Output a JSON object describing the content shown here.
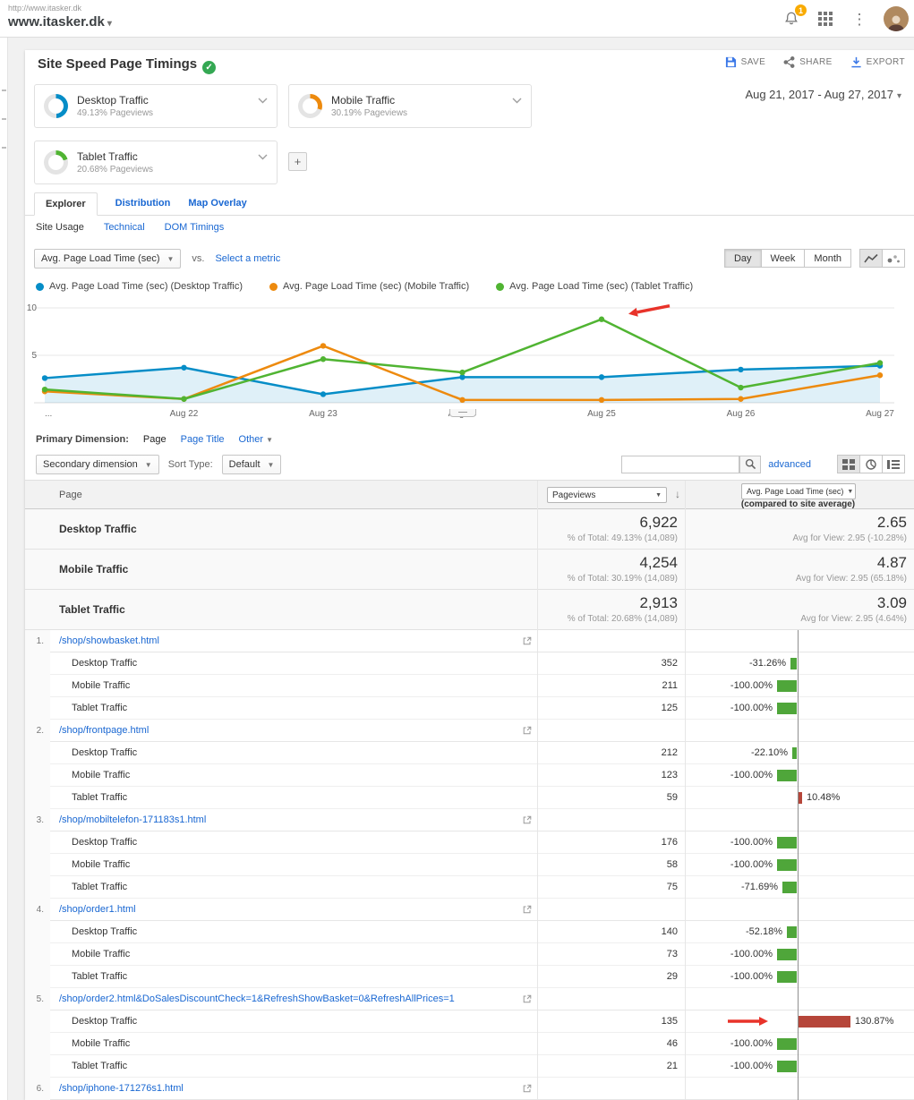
{
  "topbar": {
    "url": "http://www.itasker.dk",
    "account": "www.itasker.dk",
    "notification_count": "1"
  },
  "header": {
    "title": "Site Speed Page Timings",
    "save": "SAVE",
    "share": "SHARE",
    "export": "EXPORT",
    "date_range": "Aug 21, 2017 - Aug 27, 2017"
  },
  "add_segment_label": "+",
  "segments": [
    {
      "name": "Desktop Traffic",
      "subtitle": "49.13% Pageviews",
      "pct": 49.13,
      "color": "#058dc7"
    },
    {
      "name": "Mobile Traffic",
      "subtitle": "30.19% Pageviews",
      "pct": 30.19,
      "color": "#ed8a0e"
    },
    {
      "name": "Tablet Traffic",
      "subtitle": "20.68% Pageviews",
      "pct": 20.68,
      "color": "#50b432"
    }
  ],
  "tabs": {
    "main": [
      "Explorer",
      "Distribution",
      "Map Overlay"
    ],
    "sub": [
      "Site Usage",
      "Technical",
      "DOM Timings"
    ]
  },
  "controls": {
    "metric": "Avg. Page Load Time (sec)",
    "vs": "vs.",
    "select_metric": "Select a metric",
    "granularity": [
      "Day",
      "Week",
      "Month"
    ]
  },
  "chart_data": {
    "type": "line",
    "title": "Avg. Page Load Time (sec) by day",
    "x": [
      "...",
      "Aug 22",
      "Aug 23",
      "Aug 24",
      "Aug 25",
      "Aug 26",
      "Aug 27"
    ],
    "ylim": [
      0,
      10
    ],
    "yticks": [
      5,
      10
    ],
    "series": [
      {
        "name": "Avg. Page Load Time (sec) (Desktop Traffic)",
        "color": "#058dc7",
        "area": true,
        "values": [
          2.6,
          3.7,
          0.9,
          2.7,
          2.7,
          3.5,
          3.9
        ]
      },
      {
        "name": "Avg. Page Load Time (sec) (Mobile Traffic)",
        "color": "#ed8a0e",
        "values": [
          1.2,
          0.4,
          6.0,
          0.3,
          0.3,
          0.4,
          2.9
        ]
      },
      {
        "name": "Avg. Page Load Time (sec) (Tablet Traffic)",
        "color": "#50b432",
        "values": [
          1.4,
          0.4,
          4.6,
          3.2,
          8.8,
          1.6,
          4.2
        ]
      }
    ],
    "annotation": {
      "series": 2,
      "index": 4,
      "color": "#e8332a"
    }
  },
  "dimension_bar": {
    "label": "Primary Dimension:",
    "active": "Page",
    "links": [
      "Page Title",
      "Other"
    ]
  },
  "toolbar": {
    "secondary_dimension": "Secondary dimension",
    "sort_type_label": "Sort Type:",
    "sort_type": "Default",
    "advanced": "advanced",
    "search_value": ""
  },
  "table": {
    "columns": {
      "page": "Page",
      "pageviews": "Pageviews",
      "metric": "Avg. Page Load Time (sec)",
      "metric_sub": "(compared to site average)"
    },
    "delta_colors": {
      "negative": "#4fa63a",
      "positive": "#b6463a"
    },
    "summary": [
      {
        "label": "Desktop Traffic",
        "pageviews": "6,922",
        "pv_sub": "% of Total: 49.13% (14,089)",
        "metric": "2.65",
        "metric_sub": "Avg for View: 2.95 (-10.28%)"
      },
      {
        "label": "Mobile Traffic",
        "pageviews": "4,254",
        "pv_sub": "% of Total: 30.19% (14,089)",
        "metric": "4.87",
        "metric_sub": "Avg for View: 2.95 (65.18%)"
      },
      {
        "label": "Tablet Traffic",
        "pageviews": "2,913",
        "pv_sub": "% of Total: 20.68% (14,089)",
        "metric": "3.09",
        "metric_sub": "Avg for View: 2.95 (4.64%)"
      }
    ],
    "rows": [
      {
        "num": "1.",
        "page": "/shop/showbasket.html",
        "subrows": [
          {
            "label": "Desktop Traffic",
            "pageviews": "352",
            "delta": "-31.26%",
            "positive": false,
            "bar": 7
          },
          {
            "label": "Mobile Traffic",
            "pageviews": "211",
            "delta": "-100.00%",
            "positive": false,
            "bar": 22
          },
          {
            "label": "Tablet Traffic",
            "pageviews": "125",
            "delta": "-100.00%",
            "positive": false,
            "bar": 22
          }
        ]
      },
      {
        "num": "2.",
        "page": "/shop/frontpage.html",
        "subrows": [
          {
            "label": "Desktop Traffic",
            "pageviews": "212",
            "delta": "-22.10%",
            "positive": false,
            "bar": 5
          },
          {
            "label": "Mobile Traffic",
            "pageviews": "123",
            "delta": "-100.00%",
            "positive": false,
            "bar": 22
          },
          {
            "label": "Tablet Traffic",
            "pageviews": "59",
            "delta": "10.48%",
            "positive": true,
            "bar": 4
          }
        ]
      },
      {
        "num": "3.",
        "page": "/shop/mobiltelefon-171183s1.html",
        "subrows": [
          {
            "label": "Desktop Traffic",
            "pageviews": "176",
            "delta": "-100.00%",
            "positive": false,
            "bar": 22
          },
          {
            "label": "Mobile Traffic",
            "pageviews": "58",
            "delta": "-100.00%",
            "positive": false,
            "bar": 22
          },
          {
            "label": "Tablet Traffic",
            "pageviews": "75",
            "delta": "-71.69%",
            "positive": false,
            "bar": 16
          }
        ]
      },
      {
        "num": "4.",
        "page": "/shop/order1.html",
        "subrows": [
          {
            "label": "Desktop Traffic",
            "pageviews": "140",
            "delta": "-52.18%",
            "positive": false,
            "bar": 11
          },
          {
            "label": "Mobile Traffic",
            "pageviews": "73",
            "delta": "-100.00%",
            "positive": false,
            "bar": 22
          },
          {
            "label": "Tablet Traffic",
            "pageviews": "29",
            "delta": "-100.00%",
            "positive": false,
            "bar": 22
          }
        ]
      },
      {
        "num": "5.",
        "page": "/shop/order2.html&DoSalesDiscountCheck=1&RefreshShowBasket=0&RefreshAllPrices=1",
        "subrows": [
          {
            "label": "Desktop Traffic",
            "pageviews": "135",
            "delta": "130.87%",
            "positive": true,
            "bar": 58,
            "arrow": true
          },
          {
            "label": "Mobile Traffic",
            "pageviews": "46",
            "delta": "-100.00%",
            "positive": false,
            "bar": 22
          },
          {
            "label": "Tablet Traffic",
            "pageviews": "21",
            "delta": "-100.00%",
            "positive": false,
            "bar": 22
          }
        ]
      },
      {
        "num": "6.",
        "page": "/shop/iphone-171276s1.html",
        "subrows": []
      }
    ]
  }
}
